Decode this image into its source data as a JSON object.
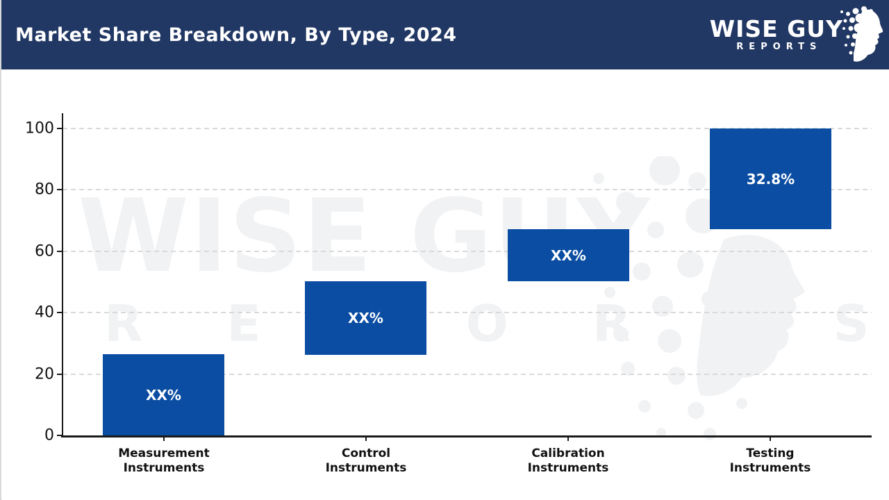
{
  "header": {
    "title": "Market Share Breakdown, By Type, 2024",
    "logo": {
      "name": "WISE GUY",
      "sub": "REPORTS"
    }
  },
  "watermark": {
    "line1": "WISE GUY",
    "line2": "R E P O R T S"
  },
  "colors": {
    "header_bg": "#223864",
    "title_text": "#ffffff",
    "bar": "#0b4da2",
    "bar_label": "#ffffff",
    "axis": "#1a1a1a",
    "tick_text": "#111111",
    "grid": "#d9d9d9",
    "watermark": "#f1f2f4"
  },
  "chart_data": {
    "type": "bar",
    "subtype": "waterfall-floating-bars",
    "title": "Market Share Breakdown, By Type, 2024",
    "categories": [
      "Measurement Instruments",
      "Control Instruments",
      "Calibration Instruments",
      "Testing Instruments"
    ],
    "bars": [
      {
        "category": "Measurement Instruments",
        "start": 0,
        "end": 26.4,
        "label": "XX%"
      },
      {
        "category": "Control Instruments",
        "start": 26.3,
        "end": 50.3,
        "label": "XX%"
      },
      {
        "category": "Calibration Instruments",
        "start": 50.2,
        "end": 67.2,
        "label": "XX%"
      },
      {
        "category": "Testing Instruments",
        "start": 67.2,
        "end": 100,
        "label": "32.8%"
      }
    ],
    "estimated_segment_sizes_pct": [
      26.4,
      23.9,
      17.0,
      32.8
    ],
    "yticks": [
      0,
      20,
      40,
      60,
      80,
      100
    ],
    "ylim": [
      0,
      105
    ],
    "xlabel": "",
    "ylabel": "",
    "grid": "horizontal-dashed",
    "legend": "none",
    "bar_color": "#0b4da2",
    "label_color": "#ffffff"
  }
}
